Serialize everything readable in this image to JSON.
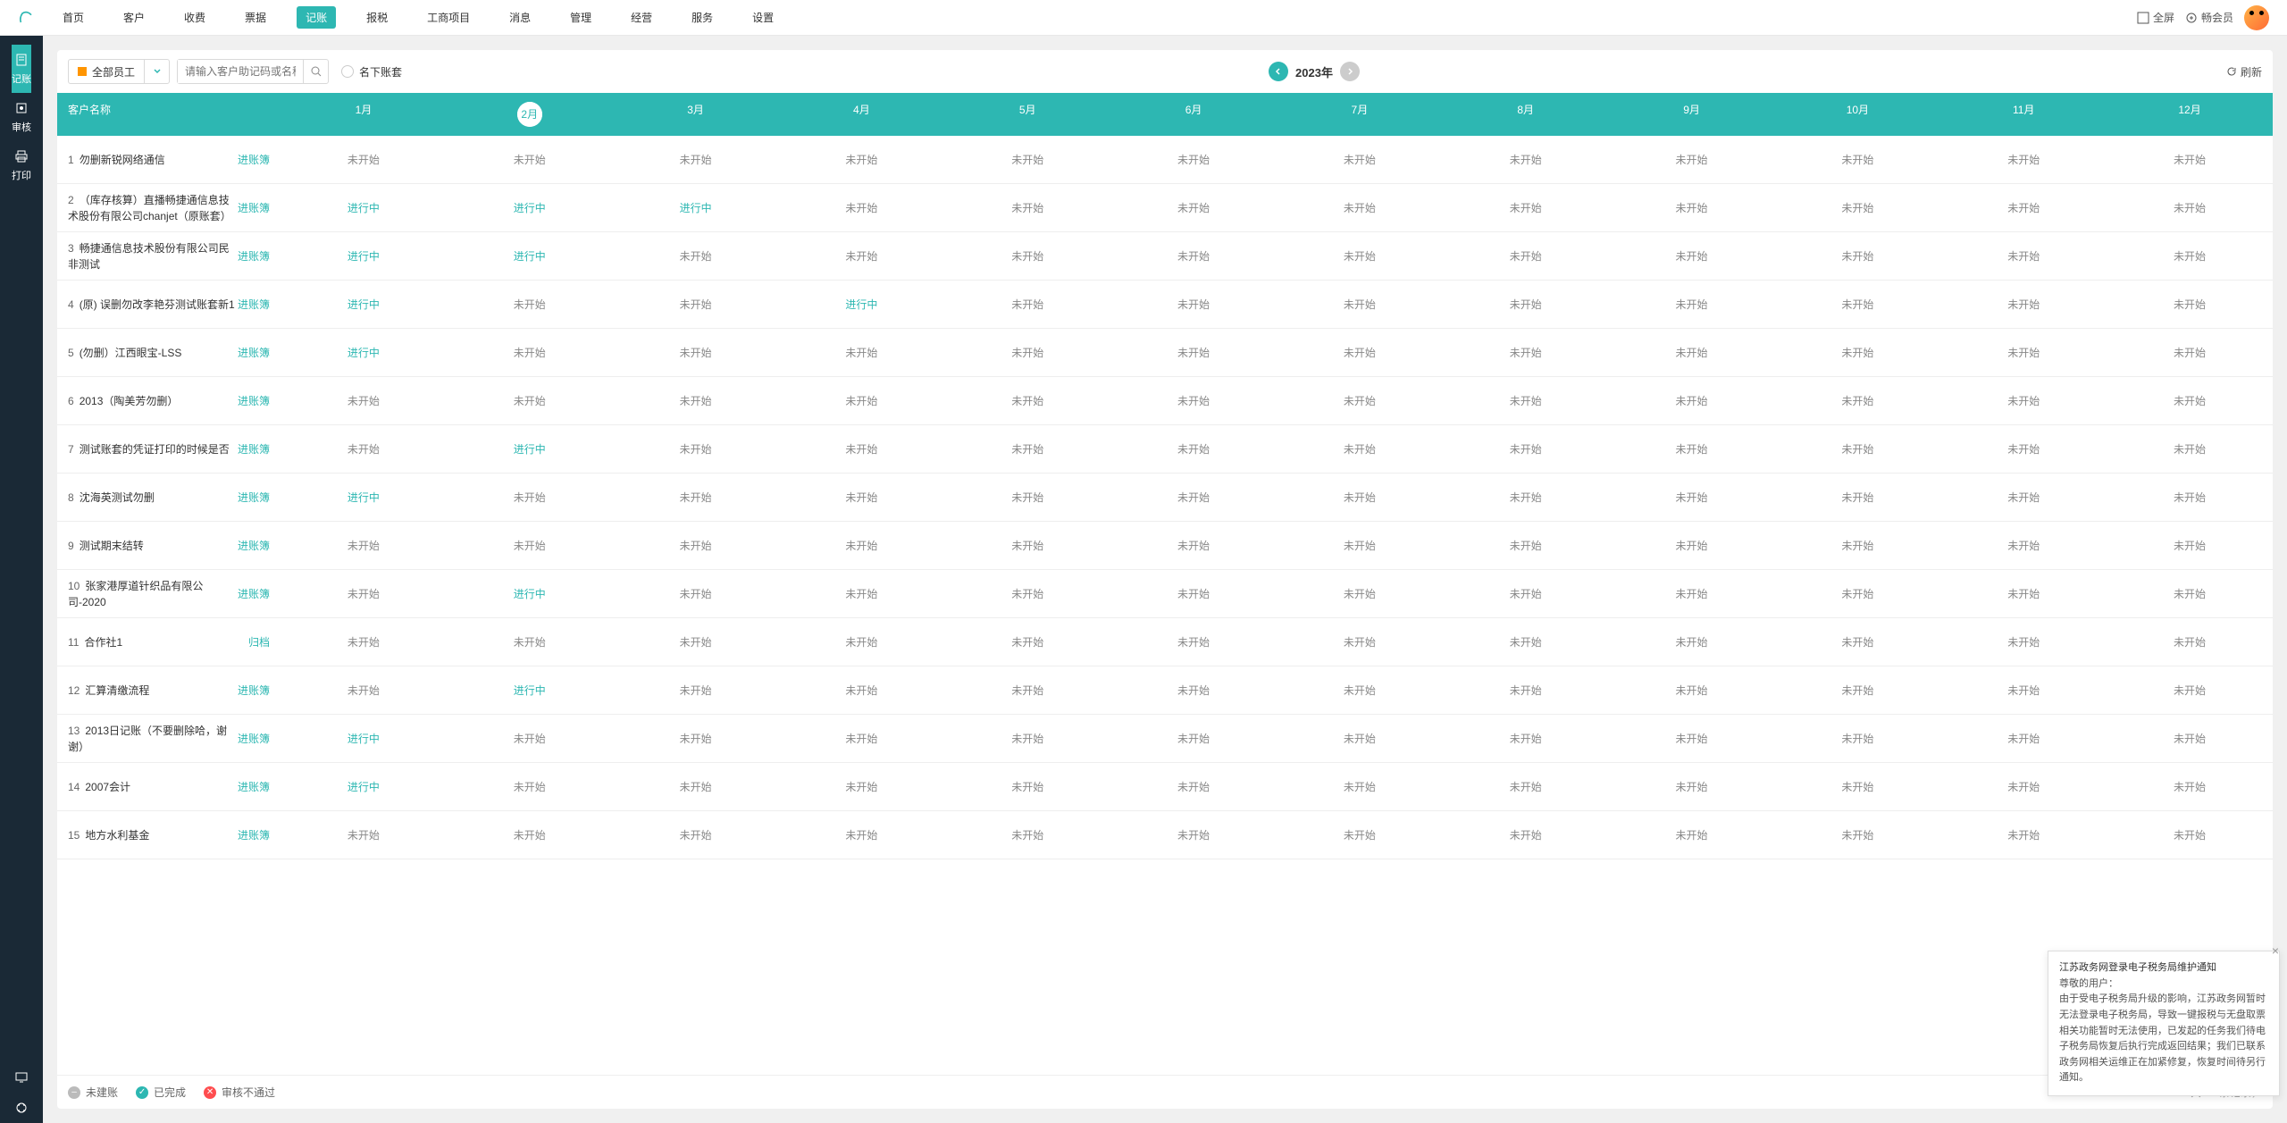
{
  "colors": {
    "accent": "#2db7b2",
    "sidebar": "#1a2936"
  },
  "top_nav": {
    "items": [
      "首页",
      "客户",
      "收费",
      "票据",
      "记账",
      "报税",
      "工商项目",
      "消息",
      "管理",
      "经营",
      "服务",
      "设置"
    ],
    "active_index": 4,
    "fullscreen": "全屏",
    "member": "畅会员"
  },
  "side_nav": {
    "items": [
      {
        "label": "记账",
        "icon": "ledger"
      },
      {
        "label": "审核",
        "icon": "review"
      },
      {
        "label": "打印",
        "icon": "print"
      }
    ],
    "active_index": 0
  },
  "toolbar": {
    "employee_select": "全部员工",
    "search_placeholder": "请输入客户助记码或名称",
    "checkbox_label": "名下账套",
    "year": "2023年",
    "refresh": "刷新"
  },
  "table": {
    "name_header": "客户名称",
    "months": [
      "1月",
      "2月",
      "3月",
      "4月",
      "5月",
      "6月",
      "7月",
      "8月",
      "9月",
      "10月",
      "11月",
      "12月"
    ],
    "active_month_index": 1,
    "status_not_started": "未开始",
    "status_in_progress": "进行中",
    "ledger_label": "进账簿",
    "archive_label": "归档",
    "rows": [
      {
        "idx": 1,
        "name": "勿删新锐网络通信",
        "link": "ledger",
        "cells": [
          "未开始",
          "未开始",
          "未开始",
          "未开始",
          "未开始",
          "未开始",
          "未开始",
          "未开始",
          "未开始",
          "未开始",
          "未开始",
          "未开始"
        ]
      },
      {
        "idx": 2,
        "name": "（库存核算）直播畅捷通信息技术股份有限公司chanjet（原账套）",
        "link": "ledger",
        "cells": [
          "进行中",
          "进行中",
          "进行中",
          "未开始",
          "未开始",
          "未开始",
          "未开始",
          "未开始",
          "未开始",
          "未开始",
          "未开始",
          "未开始"
        ]
      },
      {
        "idx": 3,
        "name": "畅捷通信息技术股份有限公司民非测试",
        "link": "ledger",
        "cells": [
          "进行中",
          "进行中",
          "未开始",
          "未开始",
          "未开始",
          "未开始",
          "未开始",
          "未开始",
          "未开始",
          "未开始",
          "未开始",
          "未开始"
        ]
      },
      {
        "idx": 4,
        "name": "(原) 误删勿改李艳芬测试账套新1",
        "link": "ledger",
        "cells": [
          "进行中",
          "未开始",
          "未开始",
          "进行中",
          "未开始",
          "未开始",
          "未开始",
          "未开始",
          "未开始",
          "未开始",
          "未开始",
          "未开始"
        ]
      },
      {
        "idx": 5,
        "name": "(勿删）江西眼宝-LSS",
        "link": "ledger",
        "cells": [
          "进行中",
          "未开始",
          "未开始",
          "未开始",
          "未开始",
          "未开始",
          "未开始",
          "未开始",
          "未开始",
          "未开始",
          "未开始",
          "未开始"
        ]
      },
      {
        "idx": 6,
        "name": "2013（陶美芳勿删）",
        "link": "ledger",
        "cells": [
          "未开始",
          "未开始",
          "未开始",
          "未开始",
          "未开始",
          "未开始",
          "未开始",
          "未开始",
          "未开始",
          "未开始",
          "未开始",
          "未开始"
        ]
      },
      {
        "idx": 7,
        "name": "测试账套的凭证打印的时候是否",
        "link": "ledger",
        "cells": [
          "未开始",
          "进行中",
          "未开始",
          "未开始",
          "未开始",
          "未开始",
          "未开始",
          "未开始",
          "未开始",
          "未开始",
          "未开始",
          "未开始"
        ]
      },
      {
        "idx": 8,
        "name": "沈海英测试勿删",
        "link": "ledger",
        "cells": [
          "进行中",
          "未开始",
          "未开始",
          "未开始",
          "未开始",
          "未开始",
          "未开始",
          "未开始",
          "未开始",
          "未开始",
          "未开始",
          "未开始"
        ]
      },
      {
        "idx": 9,
        "name": "测试期末结转",
        "link": "ledger",
        "cells": [
          "未开始",
          "未开始",
          "未开始",
          "未开始",
          "未开始",
          "未开始",
          "未开始",
          "未开始",
          "未开始",
          "未开始",
          "未开始",
          "未开始"
        ]
      },
      {
        "idx": 10,
        "name": "张家港厚道针织品有限公司-2020",
        "link": "ledger",
        "cells": [
          "未开始",
          "进行中",
          "未开始",
          "未开始",
          "未开始",
          "未开始",
          "未开始",
          "未开始",
          "未开始",
          "未开始",
          "未开始",
          "未开始"
        ]
      },
      {
        "idx": 11,
        "name": "合作社1",
        "link": "archive",
        "cells": [
          "未开始",
          "未开始",
          "未开始",
          "未开始",
          "未开始",
          "未开始",
          "未开始",
          "未开始",
          "未开始",
          "未开始",
          "未开始",
          "未开始"
        ]
      },
      {
        "idx": 12,
        "name": "汇算清缴流程",
        "link": "ledger",
        "cells": [
          "未开始",
          "进行中",
          "未开始",
          "未开始",
          "未开始",
          "未开始",
          "未开始",
          "未开始",
          "未开始",
          "未开始",
          "未开始",
          "未开始"
        ]
      },
      {
        "idx": 13,
        "name": "2013日记账（不要删除哈，谢谢）",
        "link": "ledger",
        "cells": [
          "进行中",
          "未开始",
          "未开始",
          "未开始",
          "未开始",
          "未开始",
          "未开始",
          "未开始",
          "未开始",
          "未开始",
          "未开始",
          "未开始"
        ]
      },
      {
        "idx": 14,
        "name": "2007会计",
        "link": "ledger",
        "cells": [
          "进行中",
          "未开始",
          "未开始",
          "未开始",
          "未开始",
          "未开始",
          "未开始",
          "未开始",
          "未开始",
          "未开始",
          "未开始",
          "未开始"
        ]
      },
      {
        "idx": 15,
        "name": "地方水利基金",
        "link": "ledger",
        "cells": [
          "未开始",
          "未开始",
          "未开始",
          "未开始",
          "未开始",
          "未开始",
          "未开始",
          "未开始",
          "未开始",
          "未开始",
          "未开始",
          "未开始"
        ]
      }
    ]
  },
  "footer": {
    "not_created": "未建账",
    "completed": "已完成",
    "rejected": "审核不通过",
    "count": "共131条记录，"
  },
  "notif": {
    "title": "江苏政务网登录电子税务局维护通知",
    "greeting": "尊敬的用户：",
    "body": "由于受电子税务局升级的影响，江苏政务网暂时无法登录电子税务局，导致一键报税与无盘取票相关功能暂时无法使用，已发起的任务我们待电子税务局恢复后执行完成返回结果；我们已联系政务网相关运维正在加紧修复，恢复时间待另行通知。"
  }
}
